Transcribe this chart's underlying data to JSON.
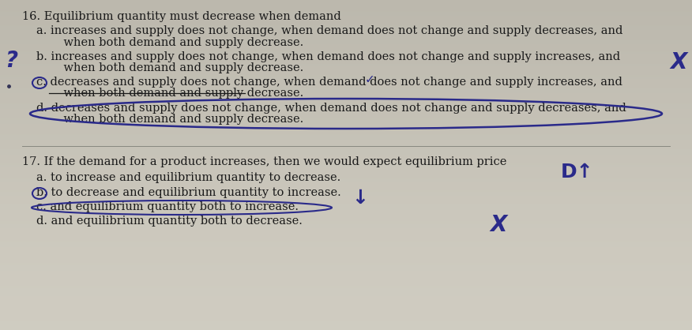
{
  "bg_color": "#ccc8bc",
  "bg_gradient_top": "#d8d2c2",
  "bg_gradient_bottom": "#b8b2a2",
  "text_color": "#1a1a1a",
  "annotation_color": "#2a2a8a",
  "q16_title": "16. Equilibrium quantity must decrease when demand",
  "q16_a1": "a. increases and supply does not change, when demand does not change and supply decreases, and",
  "q16_a2": "    when both demand and supply decrease.",
  "q16_b1": "b. increases and supply does not change, when demand does not change and supply increases, and",
  "q16_b2": "    when both demand and supply decrease.",
  "q16_c1": "c. decreases and supply does not change, when demand does not change and supply increases, and",
  "q16_c2": "    when both demand and supply decrease.",
  "q16_d1": "d. decreases and supply does not change, when demand does not change and supply decreases, and",
  "q16_d2": "    when both demand and supply decrease.",
  "q17_title": "17. If the demand for a product increases, then we would expect equilibrium price",
  "q17_a": "a. to increase and equilibrium quantity to decrease.",
  "q17_b": "b. to decrease and equilibrium quantity to increase.",
  "q17_c": "c. and equilibrium quantity both to increase.",
  "q17_d": "d. and equilibrium quantity both to decrease.",
  "fs_main": 10.5,
  "fs_annot": 15
}
